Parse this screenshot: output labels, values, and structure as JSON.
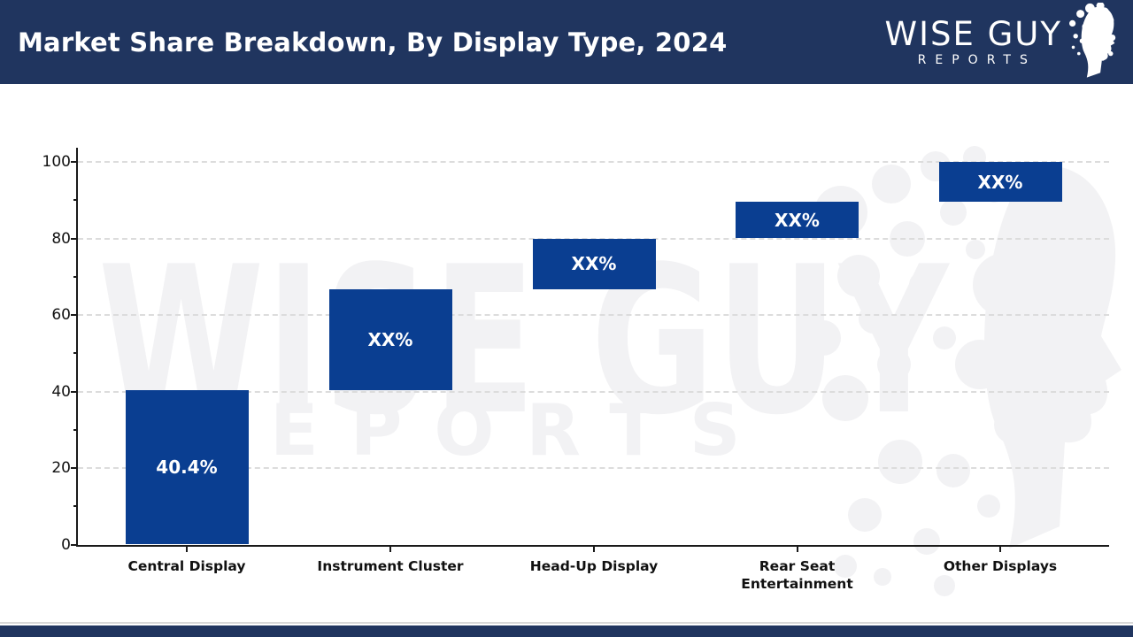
{
  "header": {
    "title": "Market Share Breakdown, By Display Type, 2024",
    "logo": {
      "line1": "WISE GUY",
      "line2": "REPORTS"
    }
  },
  "watermark": {
    "line1": "WISE GUY",
    "line2": "REPORTS"
  },
  "chart_data": {
    "type": "bar",
    "subtype": "waterfall",
    "title": "Market Share Breakdown, By Display Type, 2024",
    "xlabel": "",
    "ylabel": "",
    "categories": [
      "Central Display",
      "Instrument Cluster",
      "Head-Up Display",
      "Rear Seat Entertainment",
      "Other Displays"
    ],
    "segments": [
      {
        "category": "Central Display",
        "start": 0,
        "end": 40.4,
        "label": "40.4%"
      },
      {
        "category": "Instrument Cluster",
        "start": 40.4,
        "end": 66.7,
        "label": "XX%"
      },
      {
        "category": "Head-Up Display",
        "start": 66.7,
        "end": 80.0,
        "label": "XX%"
      },
      {
        "category": "Rear Seat Entertainment",
        "start": 80.0,
        "end": 89.5,
        "label": "XX%"
      },
      {
        "category": "Other Displays",
        "start": 89.5,
        "end": 100.0,
        "label": "XX%"
      }
    ],
    "segment_sizes": [
      40.4,
      26.3,
      13.3,
      9.5,
      10.5
    ],
    "ylim": [
      0,
      100
    ],
    "yticks": [
      0,
      20,
      40,
      60,
      80,
      100
    ],
    "grid": "horizontal-dashed",
    "legend": "none",
    "bar_color": "#0a3e91",
    "bar_label_color": "#ffffff"
  },
  "colors": {
    "header_bg": "#20355f",
    "footer_bg": "#20355f",
    "bar": "#0a3e91",
    "axis": "#1a1a1a",
    "gridline": "#dcdcdc",
    "watermark": "#f2f2f4"
  }
}
